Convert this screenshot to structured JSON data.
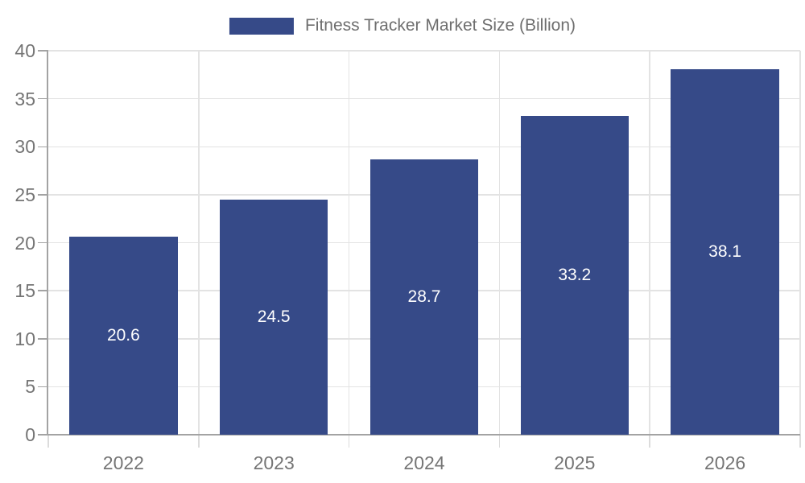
{
  "chart_data": {
    "type": "bar",
    "title": "Fitness Tracker Market Size (Billion)",
    "categories": [
      "2022",
      "2023",
      "2024",
      "2025",
      "2026"
    ],
    "values": [
      20.6,
      24.5,
      28.7,
      33.2,
      38.1
    ],
    "series": [
      {
        "name": "Fitness Tracker Market Size (Billion)",
        "values": [
          20.6,
          24.5,
          28.7,
          33.2,
          38.1
        ]
      }
    ],
    "xlabel": "",
    "ylabel": "",
    "ylim": [
      0,
      40
    ],
    "yticks": [
      0,
      5,
      10,
      15,
      20,
      25,
      30,
      35,
      40
    ],
    "grid": true,
    "legend_position": "top-center",
    "value_labels_inside_bars": true,
    "colors": {
      "bar": "#364a88",
      "grid": "#e3e3e3",
      "axis_line": "#a3a3a3",
      "x_tick": "#dcdcdc",
      "axis_label": "#757575",
      "legend_label": "#6e6e6e",
      "value_label": "#ffffff",
      "background": "#ffffff"
    }
  }
}
